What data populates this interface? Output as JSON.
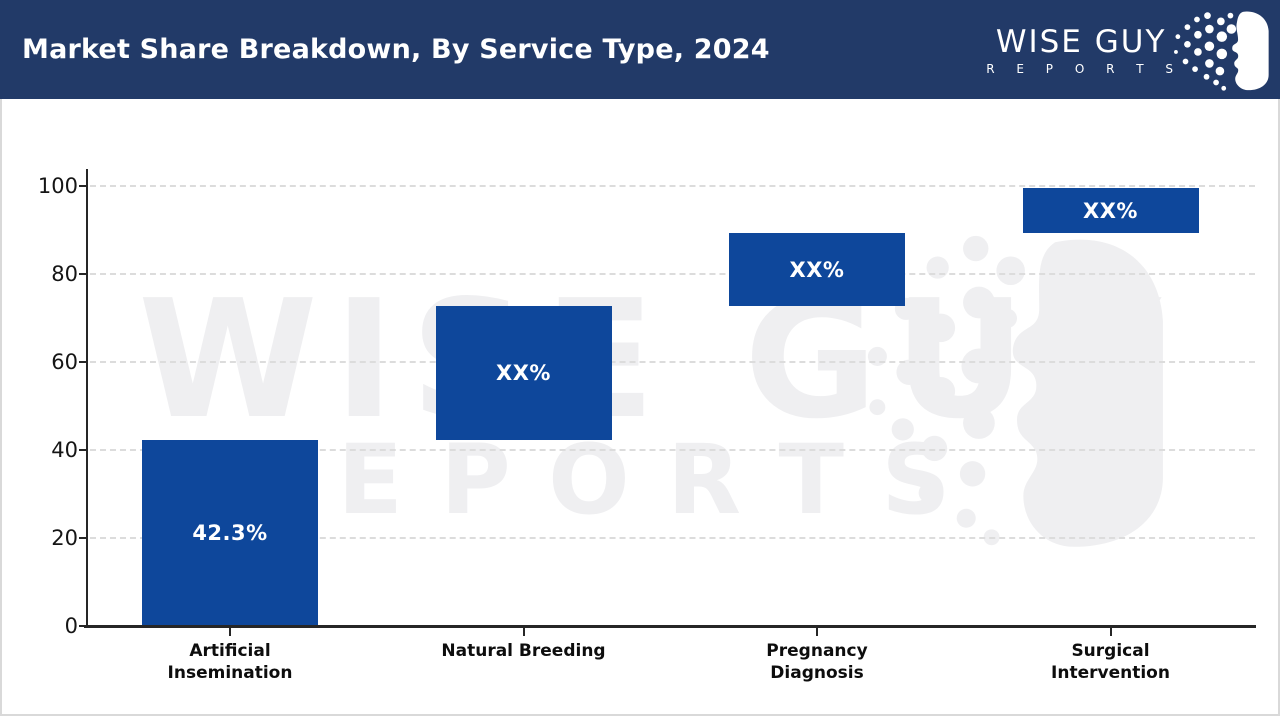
{
  "header": {
    "title": "Market Share Breakdown, By Service Type, 2024",
    "logo": {
      "title": "WISE GUY",
      "subtitle": "R E P O R T S"
    }
  },
  "watermark": {
    "line1": "WISE GUY",
    "line2": "R E P O R T S"
  },
  "colors": {
    "header_bg": "#223a68",
    "bar": "#0e479b",
    "grid": "#dcdcdc",
    "axis": "#262626",
    "watermark": "#efeff1",
    "bar_label": "#ffffff",
    "tick_label": "#151515"
  },
  "chart_data": {
    "type": "bar",
    "subtype": "waterfall",
    "title": "Market Share Breakdown, By Service Type, 2024",
    "categories": [
      "Artificial\nInsemination",
      "Natural Breeding",
      "Pregnancy\nDiagnosis",
      "Surgical\nIntervention"
    ],
    "bars": [
      {
        "category": "Artificial Insemination",
        "start": 0,
        "end": 42.3,
        "value_label": "42.3%"
      },
      {
        "category": "Natural Breeding",
        "start": 42.3,
        "end": 72.7,
        "value_label": "XX%"
      },
      {
        "category": "Pregnancy Diagnosis",
        "start": 72.7,
        "end": 89.3,
        "value_label": "XX%"
      },
      {
        "category": "Surgical Intervention",
        "start": 89.3,
        "end": 99.5,
        "value_label": "XX%"
      }
    ],
    "y_ticks": [
      0,
      20,
      40,
      60,
      80,
      100
    ],
    "ylim": [
      0,
      103.6
    ],
    "xlabel": "",
    "ylabel": "",
    "grid": "horizontal-dashed",
    "legend": null
  }
}
